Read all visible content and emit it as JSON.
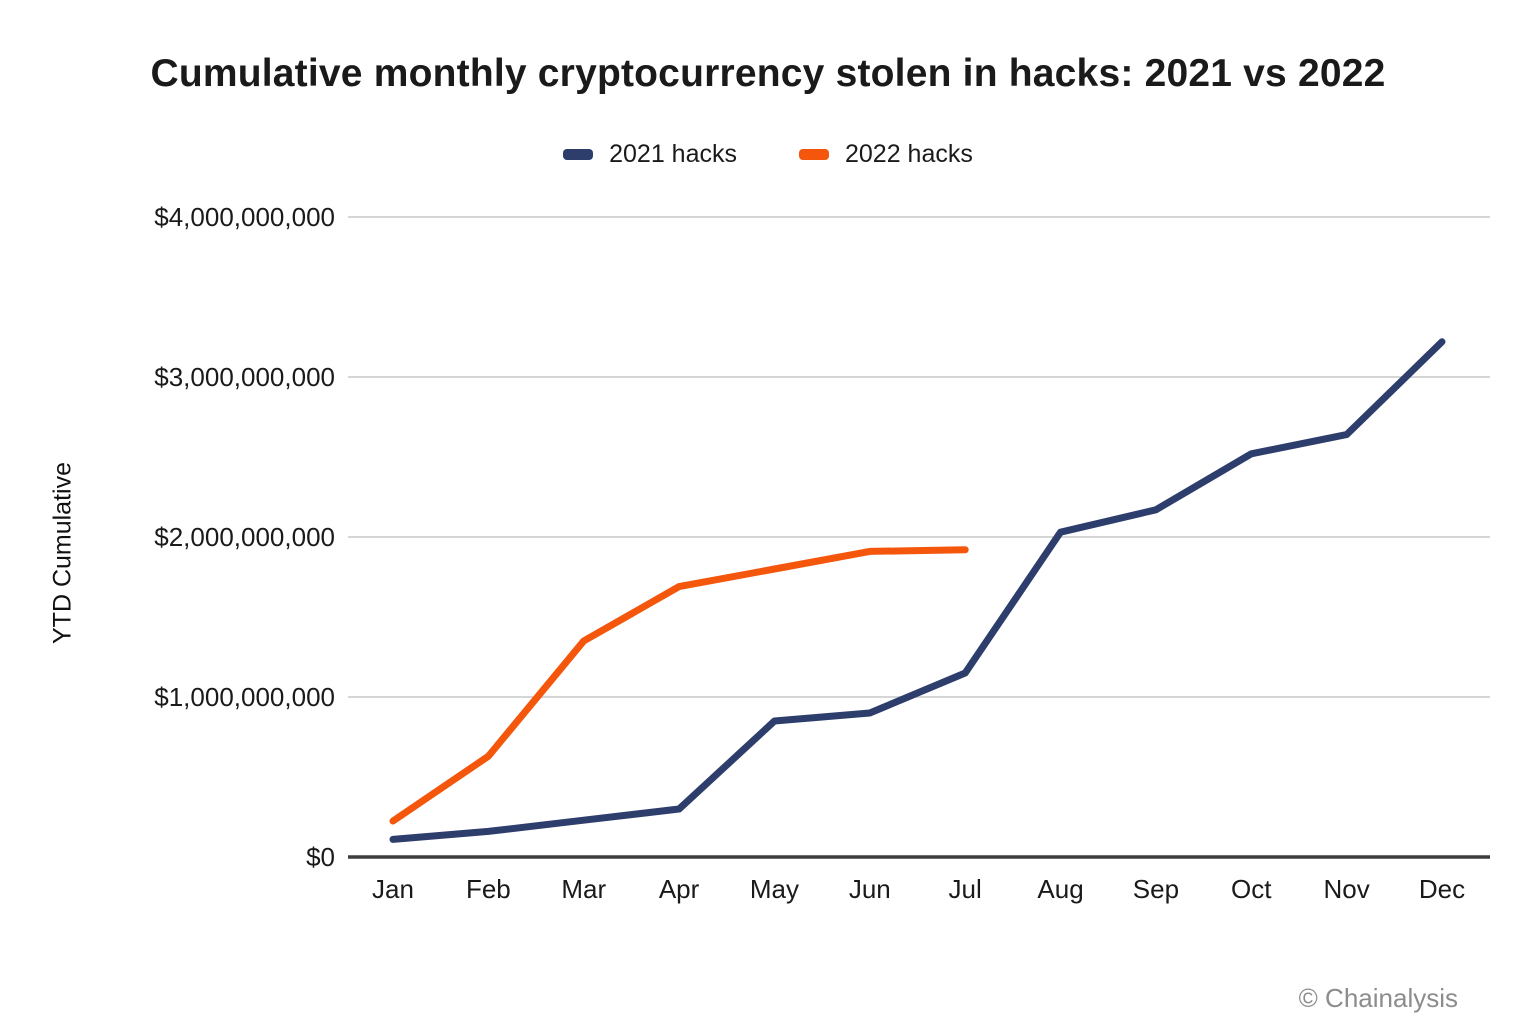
{
  "title": "Cumulative monthly cryptocurrency stolen in hacks: 2021 vs 2022",
  "ylabel": "YTD Cumulative",
  "watermark": "© Chainalysis",
  "legend": {
    "items": [
      {
        "label": "2021 hacks",
        "color": "#2e3e6c"
      },
      {
        "label": "2022 hacks",
        "color": "#f4570c"
      }
    ]
  },
  "colors": {
    "series_2021": "#2e3e6c",
    "series_2022": "#f4570c",
    "gridline": "#d6d6d6",
    "axis_line": "#3d3d3d",
    "text": "#1a1a1a",
    "watermark_text": "#8c8c8c"
  },
  "chart_data": {
    "type": "line",
    "title": "Cumulative monthly cryptocurrency stolen in hacks: 2021 vs 2022",
    "xlabel": "",
    "ylabel": "YTD Cumulative",
    "categories": [
      "Jan",
      "Feb",
      "Mar",
      "Apr",
      "May",
      "Jun",
      "Jul",
      "Aug",
      "Sep",
      "Oct",
      "Nov",
      "Dec"
    ],
    "series": [
      {
        "name": "2021 hacks",
        "color": "#2e3e6c",
        "values_usd_billions": [
          0.11,
          0.16,
          0.23,
          0.3,
          0.85,
          0.9,
          1.15,
          2.03,
          2.17,
          2.52,
          2.64,
          3.22
        ]
      },
      {
        "name": "2022 hacks",
        "color": "#f4570c",
        "values_usd_billions": [
          0.225,
          0.63,
          1.35,
          1.69,
          1.8,
          1.91,
          1.92
        ]
      }
    ],
    "yticks_billions": [
      0,
      1,
      2,
      3,
      4
    ],
    "ytick_labels": [
      "$0",
      "$1,000,000,000",
      "$2,000,000,000",
      "$3,000,000,000",
      "$4,000,000,000"
    ],
    "ylim_billions": [
      0,
      4
    ],
    "grid": "horizontal",
    "legend_position": "top-center"
  }
}
